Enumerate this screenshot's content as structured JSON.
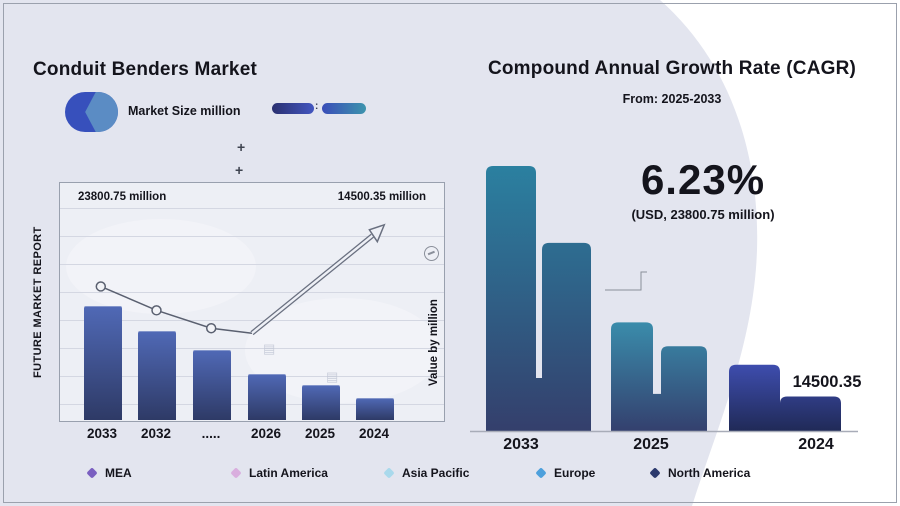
{
  "header": {
    "title": "Conduit Benders Market",
    "series_label": "Market Size million",
    "ratio_separator": ":",
    "plus_glyph": "+"
  },
  "cagr": {
    "title": "Compound Annual Growth Rate (CAGR)",
    "subtitle": "From: 2025-2033",
    "value": "6.23%",
    "detail": "(USD, 23800.75 million)"
  },
  "chart_data": [
    {
      "id": "market-size-by-year",
      "type": "bar",
      "title": "Market Size million",
      "categories": [
        "2033",
        "2032",
        ".....",
        "2026",
        "2025",
        "2024"
      ],
      "values_pct_of_max": [
        100,
        78,
        61,
        40,
        31,
        19
      ],
      "top_left_label": "23800.75 million",
      "top_right_label": "14500.35 million",
      "left_axis_label": "FUTURE MARKET REPORT",
      "right_axis_label": "Value by million",
      "bar_color_top": "#5069b6",
      "bar_color_bottom": "#2e3a66",
      "grid": true,
      "annotation": "marker line descends from 2033 to 2026 then outlined arrow rises to top right"
    },
    {
      "id": "cagr-grouped-bars",
      "type": "grouped-bar",
      "groups": [
        {
          "label": "2033",
          "heights_pct": [
            100,
            71
          ],
          "merge_pct_from_bottom": 20,
          "color_top": "#2b80a0",
          "color_bottom": "#343f6c"
        },
        {
          "label": "2025",
          "heights_pct": [
            41,
            32
          ],
          "merge_pct_from_bottom": 14,
          "color_top": "#3a8cab",
          "color_bottom": "#34406e"
        },
        {
          "label": "2024",
          "heights_pct": [
            25,
            13
          ],
          "merge_pct_from_bottom": 0,
          "color_top": "#3e4dae",
          "color_bottom": "#202a57"
        }
      ],
      "value_label": "14500.35",
      "value_label_group": "2024"
    }
  ],
  "legend": {
    "items": [
      {
        "label": "MEA",
        "color": "#7a5fc0"
      },
      {
        "label": "Latin America",
        "color": "#d9aede"
      },
      {
        "label": "Asia Pacific",
        "color": "#a9d9ec"
      },
      {
        "label": "Europe",
        "color": "#4da0dc"
      },
      {
        "label": "North America",
        "color": "#2c3a6e"
      }
    ]
  },
  "colors": {
    "page_bg": "#e3e5ef",
    "swoosh": "#ffffff",
    "text": "#14141c",
    "grid_line": "#d4d7e2"
  }
}
